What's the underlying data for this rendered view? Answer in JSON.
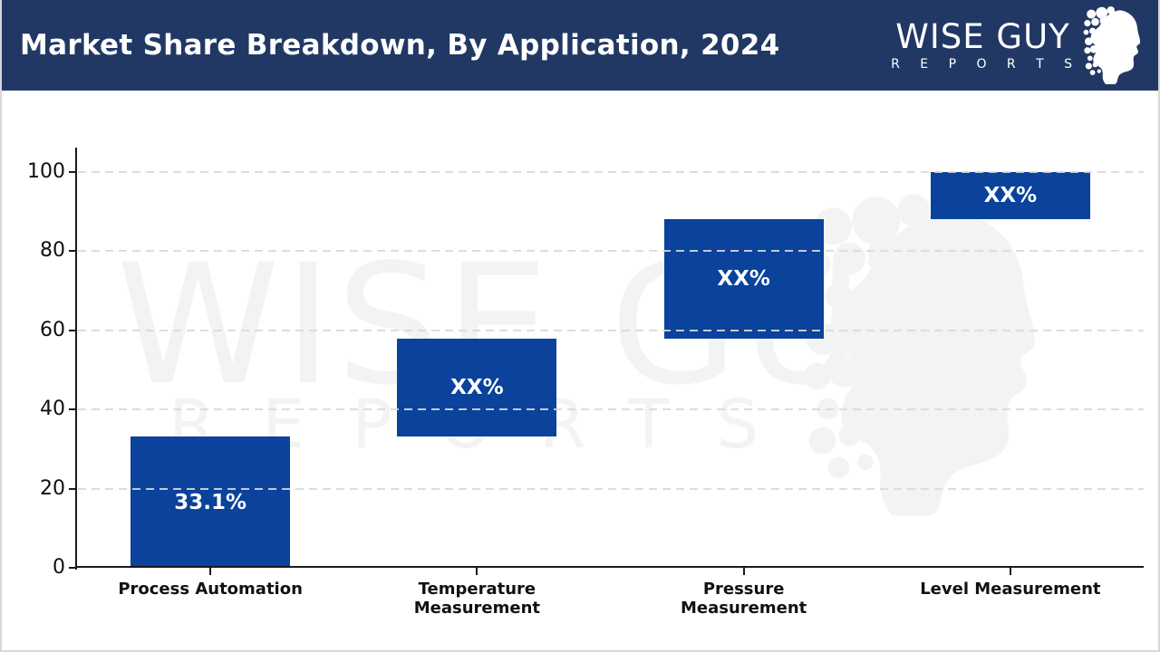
{
  "header": {
    "title": "Market Share Breakdown, By Application, 2024",
    "logo": {
      "brand": "WISE GUY",
      "sub": "R E P O R T S"
    }
  },
  "watermark": {
    "brand": "WISE GUY",
    "sub": "REPORTS"
  },
  "chart_data": {
    "type": "bar",
    "subtype": "stacked-waterfall-breakdown",
    "title": "Market Share Breakdown, By Application, 2024",
    "categories": [
      "Process Automation",
      "Temperature Measurement",
      "Pressure Measurement",
      "Level Measurement"
    ],
    "tick_labels": [
      "Process Automation",
      "Temperature\nMeasurement",
      "Pressure\nMeasurement",
      "Level Measurement"
    ],
    "segments": [
      {
        "category": "Process Automation",
        "start": 0,
        "end": 33.1,
        "label": "33.1%"
      },
      {
        "category": "Temperature Measurement",
        "start": 33.1,
        "end": 58,
        "label": "XX%"
      },
      {
        "category": "Pressure Measurement",
        "start": 58,
        "end": 88,
        "label": "XX%"
      },
      {
        "category": "Level Measurement",
        "start": 88,
        "end": 100,
        "label": "XX%"
      }
    ],
    "xlabel": "",
    "ylabel": "",
    "yticks": [
      0,
      20,
      40,
      60,
      80,
      100
    ],
    "ylim": [
      0,
      106
    ],
    "grid": "horizontal-dashed",
    "legend": "none",
    "bar_color": "#0a429c",
    "bar_label_color": "#ffffff"
  },
  "colors": {
    "header_bg": "#213864",
    "bar": "#0a429c",
    "grid": "#d9d9d9",
    "axis": "#1a1a1a",
    "watermark": "#f2f3f5",
    "page_border": "#d8d8d8"
  }
}
